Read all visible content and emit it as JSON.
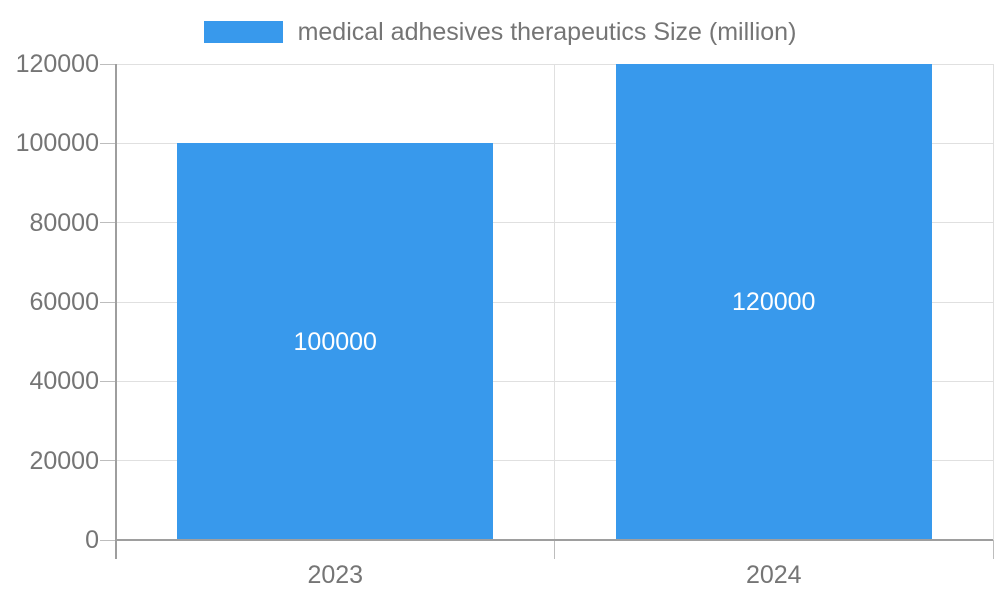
{
  "chart_data": {
    "type": "bar",
    "title": "medical adhesives therapeutics Size (million)",
    "categories": [
      "2023",
      "2024"
    ],
    "series": [
      {
        "name": "medical adhesives therapeutics Size (million)",
        "values": [
          100000,
          120000
        ],
        "value_labels": [
          "100000",
          "120000"
        ]
      }
    ],
    "ylim": [
      0,
      120000
    ],
    "ytick_step": 20000,
    "ytick_labels": [
      "0",
      "20000",
      "40000",
      "60000",
      "80000",
      "100000",
      "120000"
    ],
    "grid": true,
    "legend_position": "top",
    "colors": {
      "bar": "#3899EC",
      "bar_value_label": "#FFFFFF",
      "axis_label": "#757575",
      "axis_line": "#9E9E9E",
      "gridline": "#E0E0E0",
      "tick": "#BDBDBD"
    }
  }
}
